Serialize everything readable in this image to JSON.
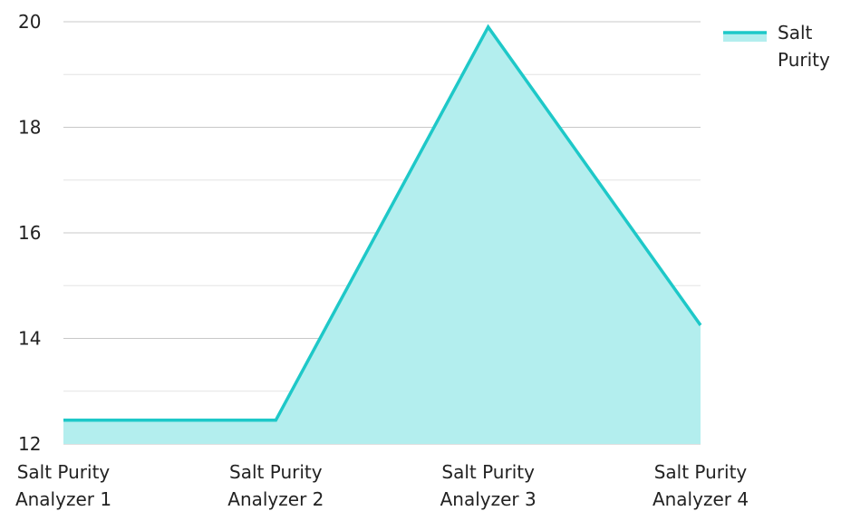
{
  "chart_data": {
    "type": "area",
    "title": "",
    "xlabel": "",
    "ylabel": "",
    "categories": [
      [
        "Salt Purity",
        "Analyzer 1"
      ],
      [
        "Salt Purity",
        "Analyzer 2"
      ],
      [
        "Salt Purity",
        "Analyzer 3"
      ],
      [
        "Salt Purity",
        "Analyzer 4"
      ]
    ],
    "series": [
      {
        "name": "Salt Purity",
        "legend_lines": [
          "Salt",
          "Purity"
        ],
        "values": [
          12.45,
          12.45,
          19.9,
          14.25
        ],
        "line_color": "#1ec8c8",
        "fill_color": "#b3eeee"
      }
    ],
    "ylim": [
      12,
      20
    ],
    "yticks": [
      12,
      14,
      16,
      18,
      20
    ],
    "minor_grid": true,
    "grid": true,
    "legend_position": "top-right"
  }
}
